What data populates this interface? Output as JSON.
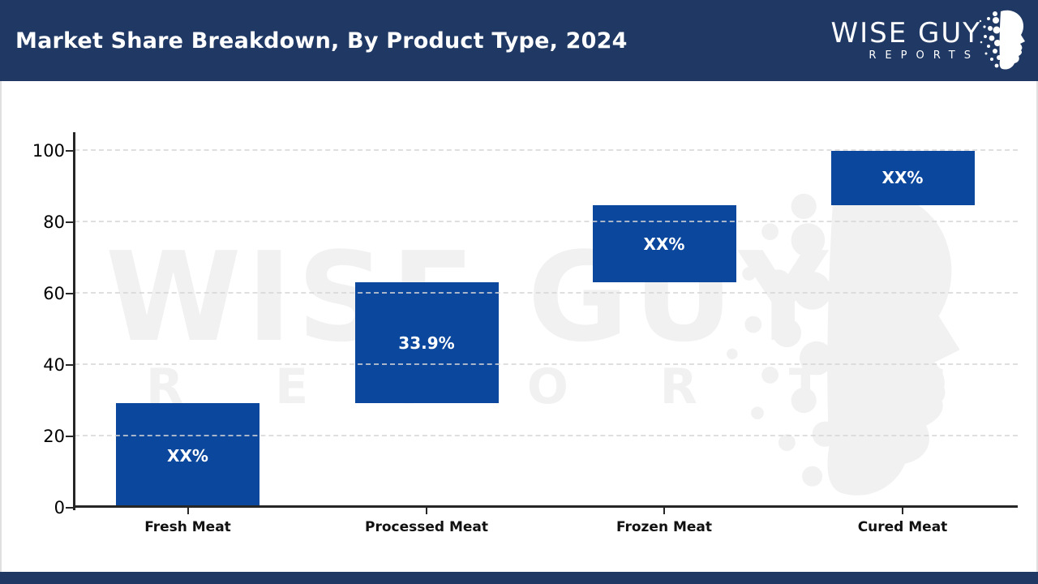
{
  "header": {
    "title": "Market Share Breakdown, By Product Type, 2024",
    "logo": {
      "line1": "WISE GUY",
      "line2": "REPORTS"
    }
  },
  "watermark": {
    "line1": "WISE GUY",
    "line2": "R E P O R T S"
  },
  "colors": {
    "header_bg": "#1f3864",
    "bar_fill": "#0b479c",
    "bar_label_text": "#ffffff",
    "gridline": "#d6d6d6",
    "axis": "#262626",
    "watermark": "#f1f1f1"
  },
  "chart_data": {
    "type": "bar",
    "subtype": "floating-segment-columns (waterfall style, each bar spans cumulative range)",
    "title": "Market Share Breakdown, By Product Type, 2024",
    "categories": [
      "Fresh Meat",
      "Processed Meat",
      "Frozen Meat",
      "Cured Meat"
    ],
    "bars": [
      {
        "category": "Fresh Meat",
        "start": 0,
        "end": 29.2,
        "value": 29.2,
        "label": "XX%"
      },
      {
        "category": "Processed Meat",
        "start": 29.2,
        "end": 63.1,
        "value": 33.9,
        "label": "33.9%"
      },
      {
        "category": "Frozen Meat",
        "start": 63.1,
        "end": 84.6,
        "value": 21.5,
        "label": "XX%"
      },
      {
        "category": "Cured Meat",
        "start": 84.6,
        "end": 100,
        "value": 15.4,
        "label": "XX%"
      }
    ],
    "y_ticks": [
      0,
      20,
      40,
      60,
      80,
      100
    ],
    "ylim": [
      0,
      105
    ],
    "xlabel": "",
    "ylabel": "",
    "grid": "horizontal-dashed",
    "legend": "none"
  }
}
